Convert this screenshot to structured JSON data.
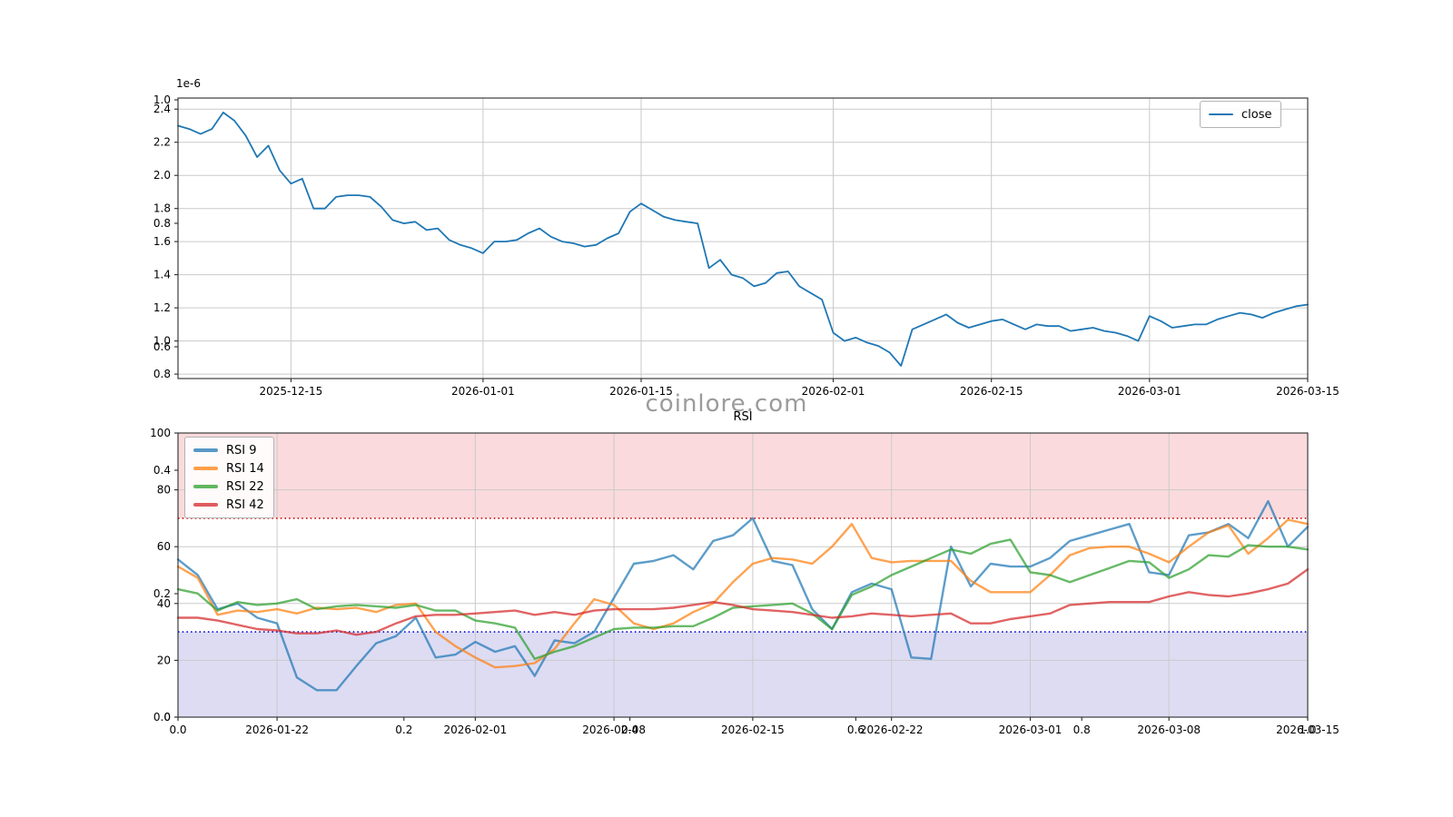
{
  "watermark": "coinlore.com",
  "price_chart": {
    "offset_label": "1e-6",
    "legend": [
      {
        "label": "close",
        "color": "#1f77b4"
      }
    ],
    "y_tick_labels": [
      "0.8",
      "1.0",
      "1.2",
      "1.4",
      "1.6",
      "1.8",
      "2.0",
      "2.2",
      "2.4"
    ],
    "x_tick_labels": [
      "2025-12-15",
      "2026-01-01",
      "2026-01-15",
      "2026-02-01",
      "2026-02-15",
      "2026-03-01",
      "2026-03-15"
    ]
  },
  "rsi_chart": {
    "title": "RSI",
    "legend": [
      {
        "label": "RSI 9",
        "color": "#1f77b4"
      },
      {
        "label": "RSI 14",
        "color": "#ff7f0e"
      },
      {
        "label": "RSI 22",
        "color": "#2ca02c"
      },
      {
        "label": "RSI 42",
        "color": "#d62728"
      }
    ],
    "y_tick_labels": [
      "0",
      "20",
      "40",
      "60",
      "80",
      "100"
    ],
    "x_tick_labels": [
      "2026-01-22",
      "2026-02-01",
      "2026-02-08",
      "2026-02-15",
      "2026-02-22",
      "2026-03-01",
      "2026-03-08",
      "2026-03-15"
    ],
    "overbought_level": 70,
    "oversold_level": 30
  },
  "ghost_axis": {
    "x_labels": [
      "0.0",
      "0.2",
      "0.4",
      "0.6",
      "0.8",
      "1.0"
    ],
    "y_labels": [
      "1.0",
      "0.8",
      "0.6",
      "0.4",
      "0.2",
      "0.0"
    ]
  },
  "colors": {
    "close": "#1f77b4",
    "rsi9": "#1f77b4",
    "rsi14": "#ff7f0e",
    "rsi22": "#2ca02c",
    "rsi42": "#d62728",
    "overbought_line": "#cc0000",
    "oversold_line": "#0000cc",
    "overbought_band": "#fadadd",
    "oversold_band": "#dddcf3",
    "grid": "#cacaca",
    "spine": "#2b2b2b",
    "watermark_color": "#9b9b9b"
  },
  "chart_data": [
    {
      "type": "line",
      "title": "",
      "unit_scale": "1e-6",
      "x_start": "2025-12-05",
      "x_end": "2026-03-15",
      "freq": "daily",
      "x_day_count": 100,
      "x_tick_labels": [
        "2025-12-15",
        "2026-01-01",
        "2026-01-15",
        "2026-02-01",
        "2026-02-15",
        "2026-03-01",
        "2026-03-15"
      ],
      "x_tick_day_index": [
        10,
        27,
        41,
        58,
        72,
        86,
        100
      ],
      "ylim": [
        0.773,
        2.467
      ],
      "y_ticks": [
        0.8,
        1.0,
        1.2,
        1.4,
        1.6,
        1.8,
        2.0,
        2.2,
        2.4
      ],
      "legend_position": "upper right",
      "grid": true,
      "series": [
        {
          "name": "close",
          "values": [
            2.3,
            2.28,
            2.25,
            2.28,
            2.38,
            2.33,
            2.24,
            2.11,
            2.18,
            2.03,
            1.95,
            1.98,
            1.8,
            1.8,
            1.87,
            1.88,
            1.88,
            1.87,
            1.81,
            1.73,
            1.71,
            1.72,
            1.67,
            1.68,
            1.61,
            1.58,
            1.56,
            1.53,
            1.6,
            1.6,
            1.61,
            1.65,
            1.68,
            1.63,
            1.6,
            1.59,
            1.57,
            1.58,
            1.62,
            1.65,
            1.78,
            1.83,
            1.79,
            1.75,
            1.73,
            1.72,
            1.71,
            1.44,
            1.49,
            1.4,
            1.38,
            1.33,
            1.35,
            1.41,
            1.42,
            1.33,
            1.29,
            1.25,
            1.05,
            1.0,
            1.02,
            0.99,
            0.97,
            0.93,
            0.85,
            1.07,
            1.1,
            1.13,
            1.16,
            1.11,
            1.08,
            1.1,
            1.12,
            1.13,
            1.1,
            1.07,
            1.1,
            1.09,
            1.09,
            1.06,
            1.07,
            1.08,
            1.06,
            1.05,
            1.03,
            1.0,
            1.15,
            1.12,
            1.08,
            1.09,
            1.1,
            1.1,
            1.13,
            1.15,
            1.17,
            1.16,
            1.14,
            1.17,
            1.19,
            1.21,
            1.22
          ]
        }
      ]
    },
    {
      "type": "line",
      "title": "RSI",
      "x_start": "2026-01-17",
      "x_end": "2026-03-15",
      "freq": "daily",
      "x_day_count": 57,
      "x_tick_labels": [
        "2026-01-22",
        "2026-02-01",
        "2026-02-08",
        "2026-02-15",
        "2026-02-22",
        "2026-03-01",
        "2026-03-08",
        "2026-03-15"
      ],
      "x_tick_day_index": [
        5,
        15,
        22,
        29,
        36,
        43,
        50,
        57
      ],
      "ylim": [
        0,
        100
      ],
      "y_ticks": [
        0,
        20,
        40,
        60,
        80,
        100
      ],
      "thresholds": {
        "overbought": 70,
        "oversold": 30
      },
      "legend_position": "upper left",
      "grid": true,
      "series": [
        {
          "name": "RSI 9",
          "values": [
            55.5,
            50,
            38,
            40,
            35,
            33,
            14,
            9.5,
            9.5,
            18,
            26,
            28.5,
            35,
            21,
            22,
            26.5,
            23,
            25,
            14.5,
            27,
            26,
            30,
            42,
            54,
            55,
            57,
            52,
            62,
            64,
            70,
            55,
            53.5,
            38,
            31,
            44,
            47,
            45,
            21,
            20.5,
            60,
            46,
            54,
            53,
            53,
            56,
            62,
            64,
            66,
            68,
            51,
            50,
            64,
            65,
            68,
            63,
            76,
            60,
            67
          ]
        },
        {
          "name": "RSI 14",
          "values": [
            53,
            49,
            36,
            37.5,
            37,
            38,
            36.5,
            38.5,
            38,
            38.5,
            37,
            39.5,
            40,
            30,
            25,
            21,
            17.5,
            18,
            19,
            24,
            33,
            41.5,
            39.5,
            33,
            31,
            33,
            37,
            40,
            47.5,
            54,
            56,
            55.5,
            54,
            60,
            68,
            56,
            54.5,
            55,
            55,
            55,
            48,
            44,
            44,
            44,
            50,
            57,
            59.5,
            60,
            60,
            57.5,
            54.5,
            60,
            65,
            67.5,
            57.5,
            63,
            69.5,
            68
          ]
        },
        {
          "name": "RSI 22",
          "values": [
            45,
            43.5,
            37.5,
            40.5,
            39.5,
            40,
            41.5,
            38,
            39,
            39.5,
            39,
            38.5,
            39.5,
            37.5,
            37.5,
            34,
            33,
            31.5,
            20.5,
            23,
            25,
            28,
            31,
            31.5,
            31.5,
            32,
            32,
            35,
            38.5,
            39,
            39.5,
            40,
            36.5,
            31,
            43,
            46,
            50,
            53,
            56,
            59,
            57.5,
            61,
            62.5,
            51,
            50,
            47.5,
            50,
            52.5,
            55,
            54.5,
            49,
            52,
            57,
            56.5,
            60.5,
            60,
            60,
            59
          ]
        },
        {
          "name": "RSI 42",
          "values": [
            35,
            35,
            34,
            32.5,
            31,
            30.5,
            29.5,
            29.5,
            30.5,
            29,
            30,
            33,
            35.5,
            36,
            36,
            36.5,
            37,
            37.5,
            36,
            37,
            36,
            37.5,
            38,
            38,
            38,
            38.5,
            39.5,
            40.5,
            39.5,
            38,
            37.5,
            37,
            36,
            35,
            35.5,
            36.5,
            36,
            35.5,
            36,
            36.5,
            33,
            33,
            34.5,
            35.5,
            36.5,
            39.5,
            40,
            40.5,
            40.5,
            40.5,
            42.5,
            44,
            43,
            42.5,
            43.5,
            45,
            47,
            52
          ]
        }
      ]
    }
  ]
}
